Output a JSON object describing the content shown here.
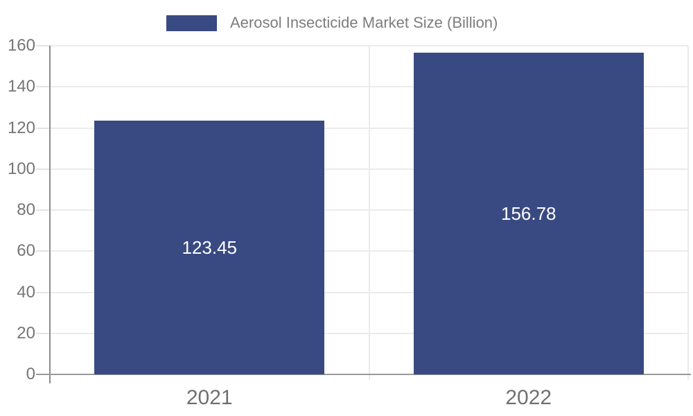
{
  "legend": {
    "title": "Aerosol Insecticide Market Size (Billion)"
  },
  "chart_data": {
    "type": "bar",
    "title": "Aerosol Insecticide Market Size (Billion)",
    "categories": [
      "2021",
      "2022"
    ],
    "values": [
      123.45,
      156.78
    ],
    "value_labels": [
      "123.45",
      "156.78"
    ],
    "ylim": [
      0,
      160
    ],
    "yticks": [
      0,
      20,
      40,
      60,
      80,
      100,
      120,
      140,
      160
    ],
    "grid": true,
    "legend_position": "top",
    "colors": {
      "bar": "#394A82",
      "value_label": "#FFFFFF",
      "axis_text": "#757575",
      "x_axis_text": "#707070",
      "legend_text": "#7D7D7D",
      "gridline": "#EBEBEB",
      "axis_line": "#8C8C8C",
      "baseline": "#999999"
    }
  }
}
